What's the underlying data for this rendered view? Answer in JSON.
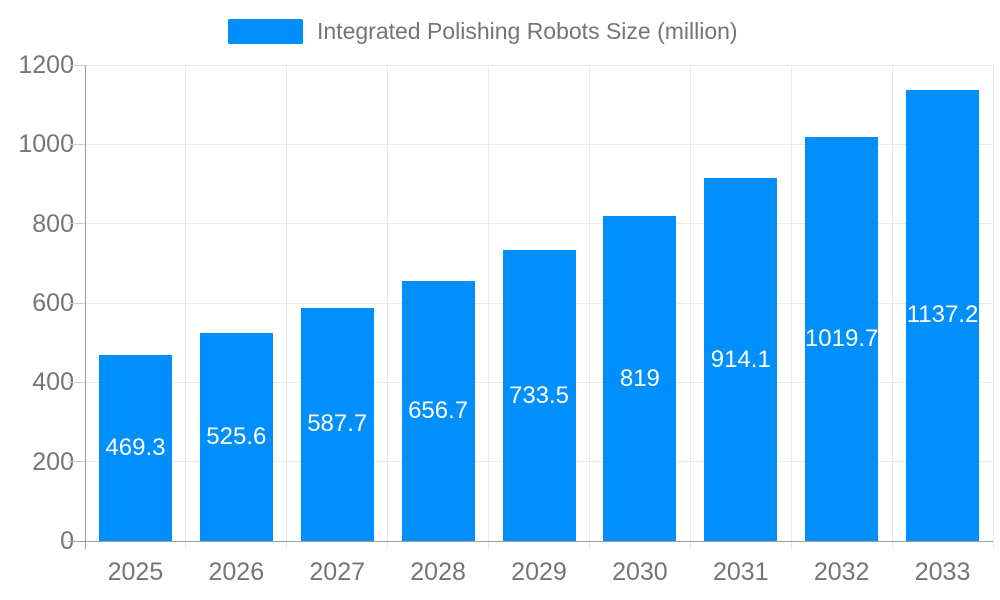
{
  "chart_data": {
    "type": "bar",
    "title": "",
    "legend_label": "Integrated Polishing Robots Size (million)",
    "legend_position": "top",
    "categories": [
      "2025",
      "2026",
      "2027",
      "2028",
      "2029",
      "2030",
      "2031",
      "2032",
      "2033"
    ],
    "series": [
      {
        "name": "Integrated Polishing Robots Size (million)",
        "values": [
          469.3,
          525.6,
          587.7,
          656.7,
          733.5,
          819,
          914.1,
          1019.7,
          1137.2
        ],
        "labels": [
          "469.3",
          "525.6",
          "587.7",
          "656.7",
          "733.5",
          "819",
          "914.1",
          "1019.7",
          "1137.2"
        ]
      }
    ],
    "xlabel": "",
    "ylabel": "",
    "ylim": [
      0,
      1200
    ],
    "yticks": [
      0,
      200,
      400,
      600,
      800,
      1000,
      1200
    ],
    "grid": true,
    "colors": {
      "bar": "#008FFB",
      "grid": "#e9e9e9",
      "axis_line": "#9e9e9e",
      "tick_mark": "#cfcfcf",
      "tick_text": "#757575",
      "bar_label": "#ffffff",
      "background": "#ffffff"
    }
  }
}
